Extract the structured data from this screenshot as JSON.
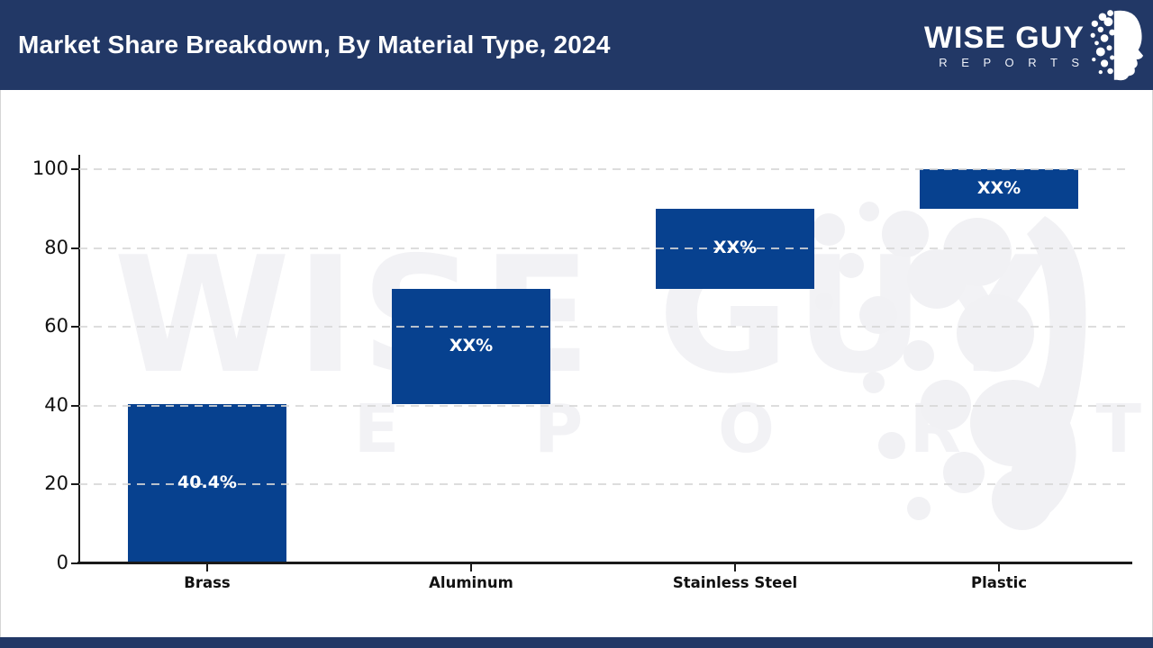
{
  "header": {
    "title": "Market Share Breakdown, By Material Type, 2024"
  },
  "logo": {
    "line1": "WISE GUY",
    "line2": "R E P O R T S"
  },
  "watermark": {
    "line1": "WISE GUY",
    "line2": "R E P O R T S"
  },
  "chart_data": {
    "type": "bar",
    "subtype": "waterfall",
    "title": "Market Share Breakdown, By Material Type, 2024",
    "categories": [
      "Brass",
      "Aluminum",
      "Stainless Steel",
      "Plastic"
    ],
    "bars": [
      {
        "category": "Brass",
        "start": 0,
        "end": 40.4,
        "segment_value": 40.4,
        "display_label": "40.4%"
      },
      {
        "category": "Aluminum",
        "start": 40.4,
        "end": 69.7,
        "segment_value": 29.3,
        "display_label": "XX%"
      },
      {
        "category": "Stainless Steel",
        "start": 69.7,
        "end": 90.0,
        "segment_value": 20.3,
        "display_label": "XX%"
      },
      {
        "category": "Plastic",
        "start": 90.0,
        "end": 100,
        "segment_value": 10.0,
        "display_label": "XX%"
      }
    ],
    "ylim": [
      0,
      100
    ],
    "y_ticks": [
      0,
      20,
      40,
      60,
      80,
      100
    ],
    "grid": "horizontal-dashed",
    "legend": "none",
    "bar_color": "#07418f"
  },
  "colors": {
    "header_bg": "#223866",
    "footer_bg": "#223866",
    "bar": "#07418f",
    "gridline": "#d7d7d7",
    "watermark": "#f2f2f5",
    "axis": "#1a1a1a"
  }
}
